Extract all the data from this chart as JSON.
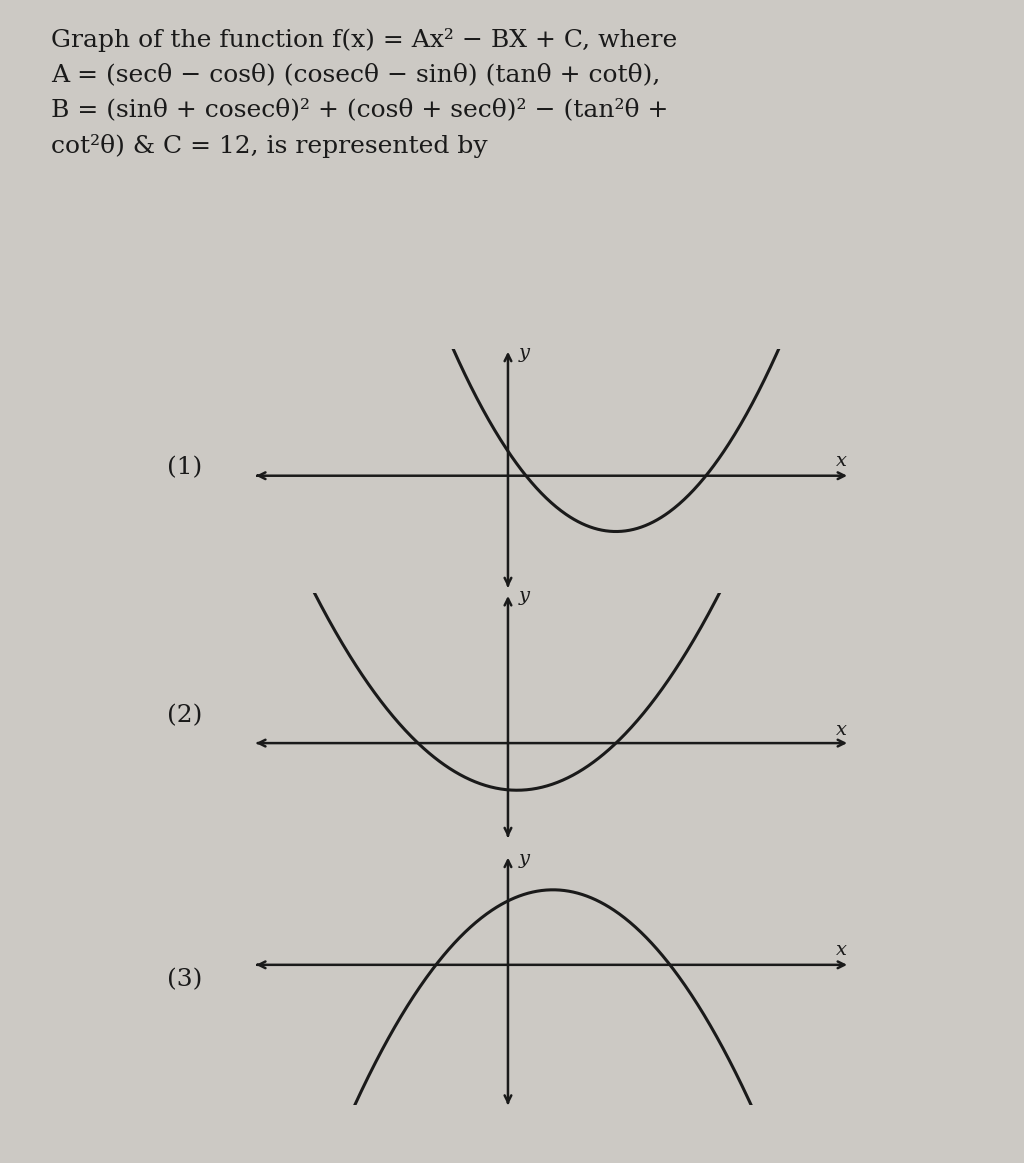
{
  "background_color": "#ccc9c4",
  "text_color": "#1a1a1a",
  "curve_color": "#1a1a1a",
  "axis_color": "#1a1a1a",
  "title_lines": [
    "Graph of the function f(x) = Ax² − BX + C, where",
    "A = (secθ − cosθ) (cosecθ − sinθ) (tanθ + cotθ),",
    "B = (sinθ + cosecθ)² + (cosθ + secθ)² − (tan²θ +",
    "cot²θ) & C = 12, is represented by"
  ],
  "graphs": [
    {
      "label": "(1)",
      "open_up": true,
      "r1": 0.2,
      "r2": 2.2,
      "y_vert": -1.1,
      "x_range": [
        -2.0,
        3.5
      ],
      "xlim": [
        -2.8,
        3.8
      ],
      "ylim": [
        -2.2,
        2.5
      ]
    },
    {
      "label": "(2)",
      "open_up": true,
      "r1": -1.0,
      "r2": 1.2,
      "y_vert": -1.1,
      "x_range": [
        -2.5,
        3.2
      ],
      "xlim": [
        -2.8,
        3.8
      ],
      "ylim": [
        -2.2,
        3.5
      ]
    },
    {
      "label": "(3)",
      "open_up": false,
      "r1": -0.8,
      "r2": 1.8,
      "y_vert": 1.5,
      "x_range": [
        -2.0,
        3.0
      ],
      "xlim": [
        -2.8,
        3.8
      ],
      "ylim": [
        -2.8,
        2.2
      ]
    }
  ]
}
